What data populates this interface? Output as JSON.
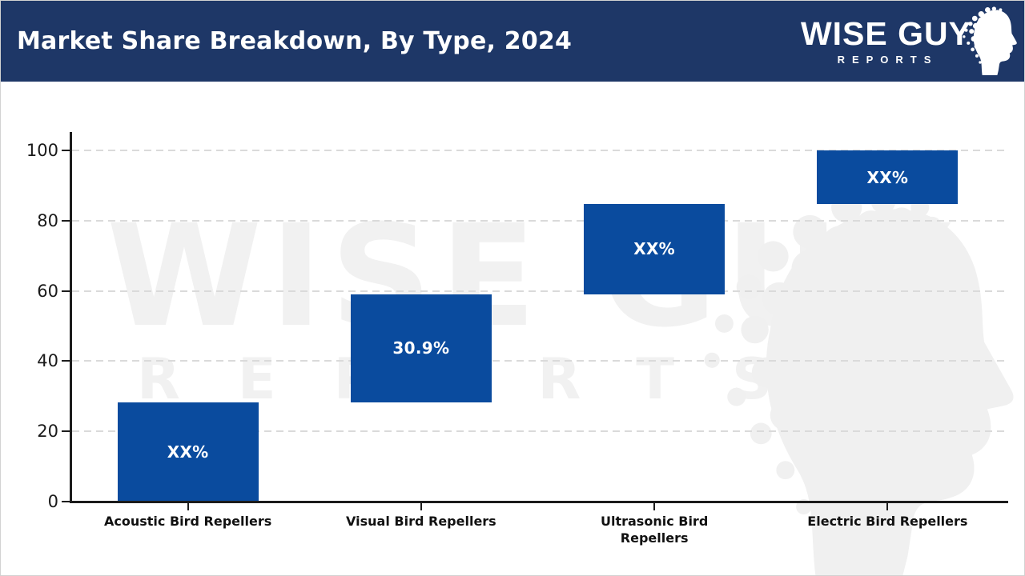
{
  "header": {
    "title": "Market Share Breakdown, By Type, 2024"
  },
  "logo": {
    "line1": "WISE GUY",
    "line2": "REPORTS"
  },
  "watermark": {
    "line1": "WISE GUY",
    "line2": "REPORTS"
  },
  "chart_data": {
    "type": "bar",
    "subtype": "waterfall-floating-bars",
    "title": "Market Share Breakdown, By Type, 2024",
    "categories": [
      "Acoustic Bird Repellers",
      "Visual Bird Repellers",
      "Ultrasonic Bird Repellers",
      "Electric Bird Repellers"
    ],
    "bars": [
      {
        "category": "Acoustic Bird Repellers",
        "start": 0,
        "end": 28.2,
        "label": "XX%"
      },
      {
        "category": "Visual Bird Repellers",
        "start": 28.2,
        "end": 59.1,
        "label": "30.9%"
      },
      {
        "category": "Ultrasonic Bird Repellers",
        "start": 59.1,
        "end": 84.7,
        "label": "XX%"
      },
      {
        "category": "Electric Bird Repellers",
        "start": 84.7,
        "end": 100,
        "label": "XX%"
      }
    ],
    "ylim": [
      0,
      100
    ],
    "yticks": [
      0,
      20,
      40,
      60,
      80,
      100
    ],
    "xlabel": "",
    "ylabel": "",
    "grid": "horizontal-dashed",
    "legend": "none",
    "bar_color": "#0a4b9e",
    "value_label_color": "#ffffff",
    "axis_color": "#1c1c1c"
  }
}
